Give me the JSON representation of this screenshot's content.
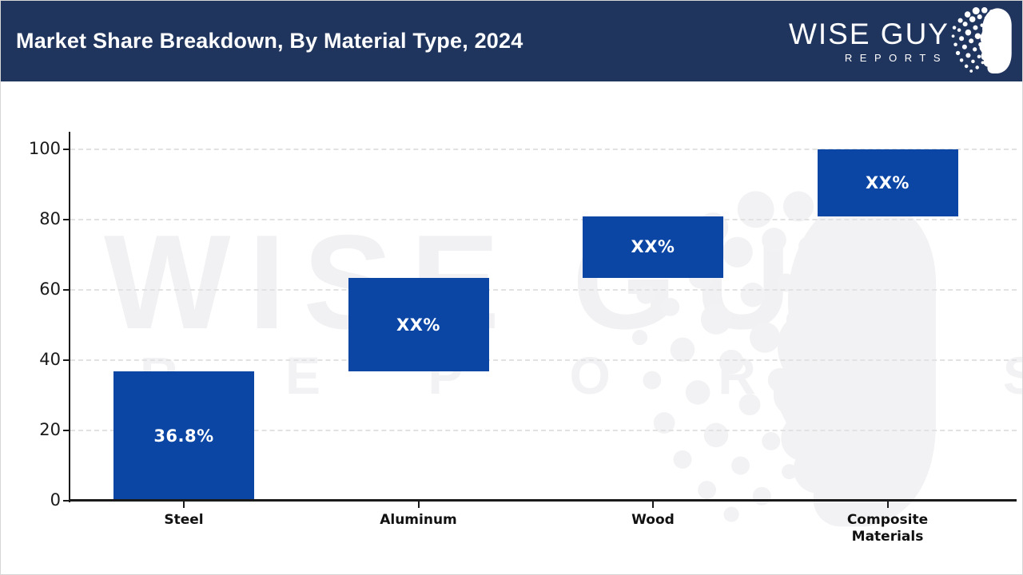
{
  "header": {
    "title": "Market Share Breakdown, By Material Type, 2024",
    "background_color": "#20355e",
    "logo": {
      "line1": "WISE GUY",
      "line2": "REPORTS",
      "head_icon": "dotted-head-profile"
    }
  },
  "watermark": {
    "line1": "WISE GUY",
    "line2": "R E P O R T S",
    "head_icon": "dotted-head-profile",
    "color": "#f1f1f3"
  },
  "chart_data": {
    "type": "bar",
    "subtype": "waterfall",
    "title": "Market Share Breakdown, By Material Type, 2024",
    "categories": [
      "Steel",
      "Aluminum",
      "Wood",
      "Composite Materials"
    ],
    "series": [
      {
        "name": "Market Share (%)",
        "segments": [
          {
            "category": "Steel",
            "start": 0,
            "end": 36.8,
            "label": "36.8%"
          },
          {
            "category": "Aluminum",
            "start": 36.8,
            "end": 63.4,
            "label": "XX%"
          },
          {
            "category": "Wood",
            "start": 63.4,
            "end": 81.0,
            "label": "XX%"
          },
          {
            "category": "Composite Materials",
            "start": 81.0,
            "end": 100.0,
            "label": "XX%"
          }
        ]
      }
    ],
    "xlabel": "",
    "ylabel": "",
    "yticks": [
      0,
      20,
      40,
      60,
      80,
      100
    ],
    "ylim": [
      0,
      105
    ],
    "grid": true,
    "gridline_style": "dashed",
    "legend": "none",
    "bar_color": "#0b46a4",
    "bar_label_color": "#ffffff",
    "axis_color": "#1a1a1a"
  }
}
